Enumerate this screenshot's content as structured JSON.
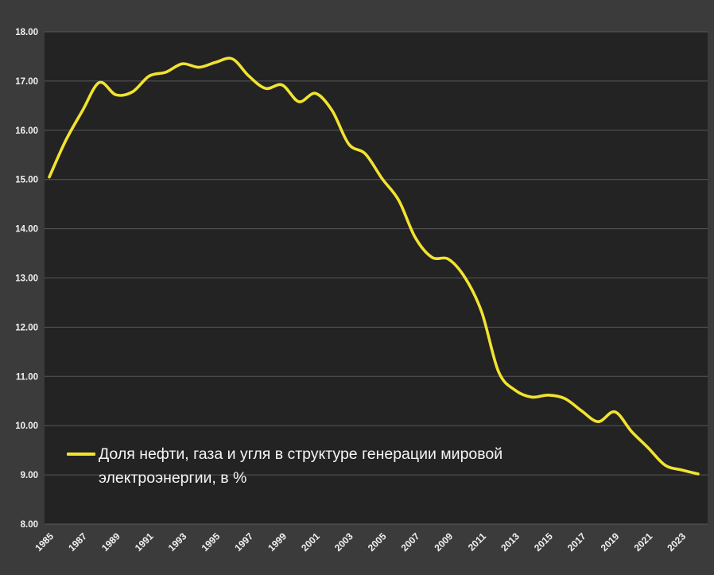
{
  "chart_data": {
    "type": "line",
    "title": "",
    "legend": "Доля нефти, газа и угля в структуре генерации мировой электроэнергии, в %",
    "x": [
      1985,
      1986,
      1987,
      1988,
      1989,
      1990,
      1991,
      1992,
      1993,
      1994,
      1995,
      1996,
      1997,
      1998,
      1999,
      2000,
      2001,
      2002,
      2003,
      2004,
      2005,
      2006,
      2007,
      2008,
      2009,
      2010,
      2011,
      2012,
      2013,
      2014,
      2015,
      2016,
      2017,
      2018,
      2019,
      2020,
      2021,
      2022,
      2023,
      2024
    ],
    "values": [
      15.05,
      15.8,
      16.4,
      16.97,
      16.72,
      16.78,
      17.1,
      17.18,
      17.35,
      17.28,
      17.38,
      17.45,
      17.1,
      16.85,
      16.92,
      16.58,
      16.75,
      16.4,
      15.72,
      15.52,
      15.02,
      14.58,
      13.82,
      13.42,
      13.38,
      13.0,
      12.3,
      11.1,
      10.72,
      10.58,
      10.62,
      10.55,
      10.3,
      10.08,
      10.28,
      9.88,
      9.55,
      9.2,
      9.1,
      9.02
    ],
    "ylim": [
      8,
      18
    ],
    "yticks": [
      "8.00",
      "9.00",
      "10.00",
      "11.00",
      "12.00",
      "13.00",
      "14.00",
      "15.00",
      "16.00",
      "17.00",
      "18.00"
    ],
    "xticks": [
      "1985",
      "1987",
      "1989",
      "1991",
      "1993",
      "1995",
      "1997",
      "1999",
      "2001",
      "2003",
      "2005",
      "2007",
      "2009",
      "2011",
      "2013",
      "2015",
      "2017",
      "2019",
      "2021",
      "2023"
    ],
    "xlabel": "",
    "ylabel": "",
    "grid": "horizontal-only",
    "legend_position": "bottom-left-inside-plot",
    "line_color": "#F2E32F",
    "background": "#3B3B3B",
    "plot_background": "#232323",
    "grid_color": "#585858",
    "text_color": "#F2F2F2"
  }
}
